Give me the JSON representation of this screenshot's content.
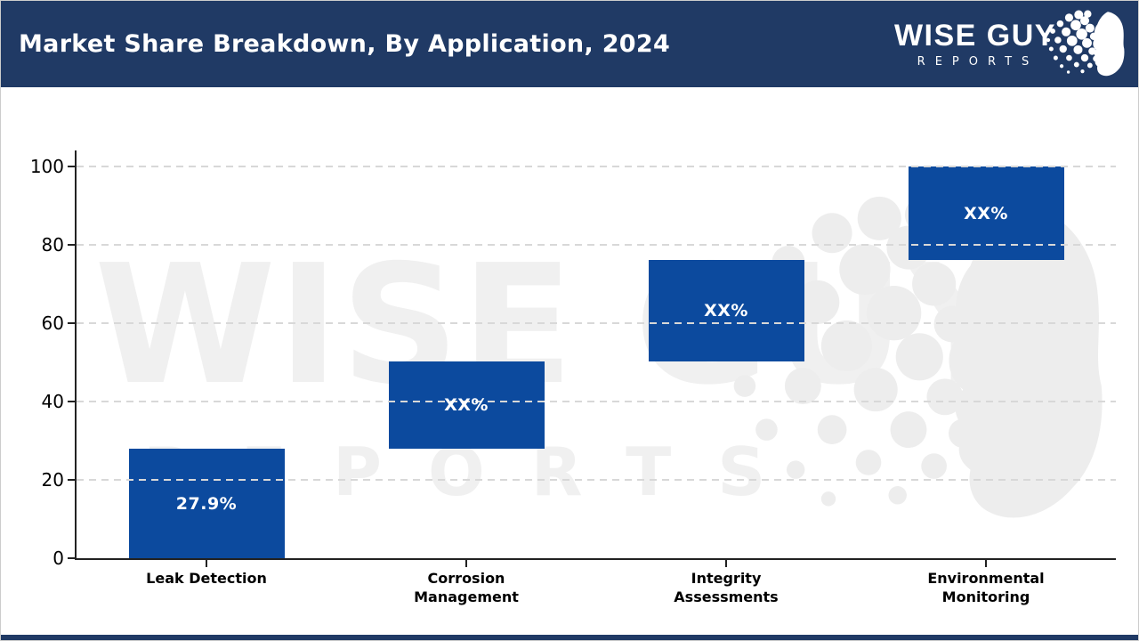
{
  "header": {
    "title": "Market Share Breakdown, By Application, 2024",
    "brand": {
      "name": "WISE GUY",
      "subtitle": "REPORTS"
    }
  },
  "watermark": {
    "line1": "WISE GUY",
    "line2": "REPORTS"
  },
  "colors": {
    "header_bg": "#203a65",
    "bar_fill": "#0c4a9e",
    "bar_label_text": "#ffffff",
    "grid_line": "#d8d8d8",
    "axis_line": "#222222",
    "watermark": "#f0f0f0"
  },
  "chart_data": {
    "type": "bar",
    "variant": "waterfall",
    "title": "Market Share Breakdown, By Application, 2024",
    "categories": [
      "Leak Detection",
      "Corrosion Management",
      "Integrity Assessments",
      "Environmental Monitoring"
    ],
    "segments": [
      {
        "category": "Leak Detection",
        "start": 0,
        "end": 27.9,
        "label": "27.9%"
      },
      {
        "category": "Corrosion Management",
        "start": 27.9,
        "end": 50.2,
        "label": "XX%"
      },
      {
        "category": "Integrity Assessments",
        "start": 50.2,
        "end": 76.1,
        "label": "XX%"
      },
      {
        "category": "Environmental Monitoring",
        "start": 76.1,
        "end": 100,
        "label": "XX%"
      }
    ],
    "xlabel": "",
    "ylabel": "",
    "ylim": [
      0,
      104
    ],
    "yticks": [
      0,
      20,
      40,
      60,
      80,
      100
    ],
    "grid": "horizontal-dashed",
    "legend": false
  }
}
